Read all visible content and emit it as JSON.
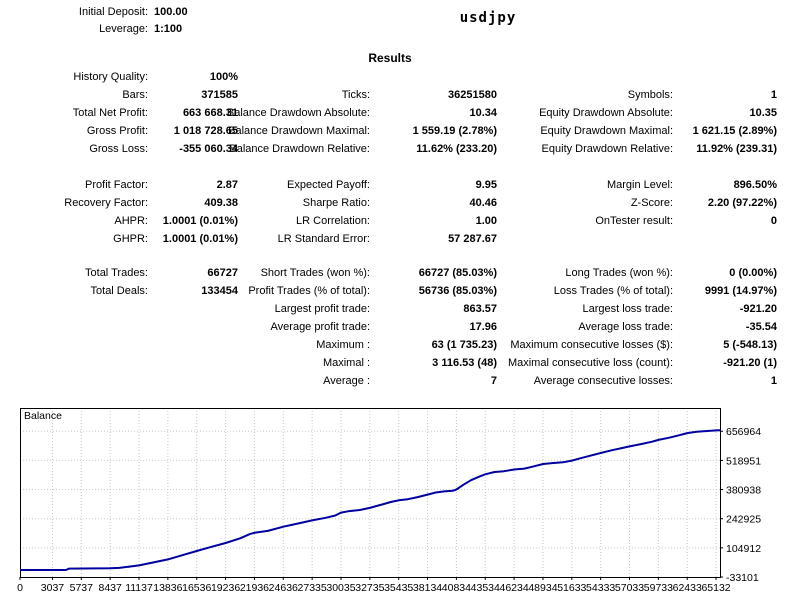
{
  "header": {
    "initial_deposit_label": "Initial Deposit:",
    "initial_deposit_value": "100.00",
    "leverage_label": "Leverage:",
    "leverage_value": "1:100",
    "symbol_title": "usdjpy",
    "results_title": "Results"
  },
  "stats": {
    "blocks": [
      {
        "rows": [
          [
            "History Quality:",
            "100%",
            "",
            "",
            "",
            ""
          ],
          [
            "Bars:",
            "371585",
            "Ticks:",
            "36251580",
            "Symbols:",
            "1"
          ],
          [
            "Total Net Profit:",
            "663 668.31",
            "Balance Drawdown Absolute:",
            "10.34",
            "Equity Drawdown Absolute:",
            "10.35"
          ],
          [
            "Gross Profit:",
            "1 018 728.65",
            "Balance Drawdown Maximal:",
            "1 559.19 (2.78%)",
            "Equity Drawdown Maximal:",
            "1 621.15 (2.89%)"
          ],
          [
            "Gross Loss:",
            "-355 060.34",
            "Balance Drawdown Relative:",
            "11.62% (233.20)",
            "Equity Drawdown Relative:",
            "11.92% (239.31)"
          ]
        ]
      },
      {
        "rows": [
          [
            "Profit Factor:",
            "2.87",
            "Expected Payoff:",
            "9.95",
            "Margin Level:",
            "896.50%"
          ],
          [
            "Recovery Factor:",
            "409.38",
            "Sharpe Ratio:",
            "40.46",
            "Z-Score:",
            "2.20 (97.22%)"
          ],
          [
            "AHPR:",
            "1.0001 (0.01%)",
            "LR Correlation:",
            "1.00",
            "OnTester result:",
            "0"
          ],
          [
            "GHPR:",
            "1.0001 (0.01%)",
            "LR Standard Error:",
            "57 287.67",
            "",
            ""
          ]
        ]
      },
      {
        "rows": [
          [
            "Total Trades:",
            "66727",
            "Short Trades (won %):",
            "66727 (85.03%)",
            "Long Trades (won %):",
            "0 (0.00%)"
          ],
          [
            "Total Deals:",
            "133454",
            "Profit Trades (% of total):",
            "56736 (85.03%)",
            "Loss Trades (% of total):",
            "9991 (14.97%)"
          ],
          [
            "",
            "",
            "Largest profit trade:",
            "863.57",
            "Largest loss trade:",
            "-921.20"
          ],
          [
            "",
            "",
            "Average profit trade:",
            "17.96",
            "Average loss trade:",
            "-35.54"
          ],
          [
            "",
            "",
            "Maximum :",
            "63 (1 735.23)",
            "Maximum consecutive losses ($):",
            "5 (-548.13)"
          ],
          [
            "",
            "",
            "Maximal :",
            "3 116.53 (48)",
            "Maximal consecutive loss (count):",
            "-921.20 (1)"
          ],
          [
            "",
            "",
            "Average :",
            "7",
            "Average consecutive losses:",
            "1"
          ]
        ]
      }
    ]
  },
  "chart_data": {
    "type": "line",
    "title": "Balance",
    "line_color": "#0000A0",
    "grid_color": "#C9C9C9",
    "legend_position": "top-left-inside",
    "grid": true,
    "xlim": [
      0,
      65500
    ],
    "ylim": [
      -33101,
      767000
    ],
    "x_ticks": [
      0,
      3037,
      5737,
      8437,
      11137,
      13836,
      16536,
      19236,
      21936,
      24636,
      27335,
      30035,
      32735,
      35435,
      38134,
      40834,
      43534,
      46234,
      48934,
      51633,
      54333,
      57033,
      59733,
      62433,
      65132
    ],
    "y_ticks": [
      -33101,
      104912,
      242925,
      380938,
      518951,
      656964
    ],
    "series": [
      {
        "name": "Balance",
        "points": [
          [
            0,
            100
          ],
          [
            4300,
            100
          ],
          [
            4600,
            6500
          ],
          [
            8437,
            8500
          ],
          [
            9300,
            10000
          ],
          [
            11137,
            22000
          ],
          [
            12500,
            36000
          ],
          [
            13836,
            50000
          ],
          [
            15200,
            70000
          ],
          [
            16536,
            90000
          ],
          [
            17800,
            108000
          ],
          [
            19236,
            128000
          ],
          [
            20600,
            150000
          ],
          [
            21500,
            170000
          ],
          [
            21936,
            176000
          ],
          [
            23200,
            185000
          ],
          [
            24636,
            205000
          ],
          [
            25800,
            218000
          ],
          [
            27335,
            235000
          ],
          [
            28600,
            247000
          ],
          [
            29500,
            258000
          ],
          [
            30035,
            272000
          ],
          [
            30700,
            278000
          ],
          [
            31800,
            284000
          ],
          [
            32735,
            294000
          ],
          [
            33700,
            308000
          ],
          [
            34700,
            322000
          ],
          [
            35435,
            330000
          ],
          [
            36300,
            335000
          ],
          [
            37200,
            345000
          ],
          [
            38134,
            357000
          ],
          [
            38900,
            367000
          ],
          [
            39700,
            372000
          ],
          [
            40500,
            375000
          ],
          [
            40834,
            381000
          ],
          [
            41500,
            404000
          ],
          [
            42200,
            425000
          ],
          [
            42900,
            441000
          ],
          [
            43534,
            453000
          ],
          [
            44400,
            464000
          ],
          [
            45300,
            468000
          ],
          [
            46234,
            476000
          ],
          [
            47200,
            480000
          ],
          [
            48100,
            491000
          ],
          [
            48934,
            502000
          ],
          [
            49800,
            506000
          ],
          [
            50800,
            510000
          ],
          [
            51633,
            518000
          ],
          [
            52600,
            531000
          ],
          [
            53500,
            543000
          ],
          [
            54333,
            554000
          ],
          [
            55400,
            567000
          ],
          [
            56300,
            577000
          ],
          [
            57033,
            585000
          ],
          [
            58100,
            596000
          ],
          [
            59100,
            607000
          ],
          [
            59733,
            616000
          ],
          [
            60700,
            626000
          ],
          [
            61700,
            638000
          ],
          [
            62433,
            648000
          ],
          [
            63300,
            655000
          ],
          [
            64300,
            658000
          ],
          [
            65132,
            661000
          ],
          [
            65500,
            662000
          ]
        ]
      }
    ]
  }
}
